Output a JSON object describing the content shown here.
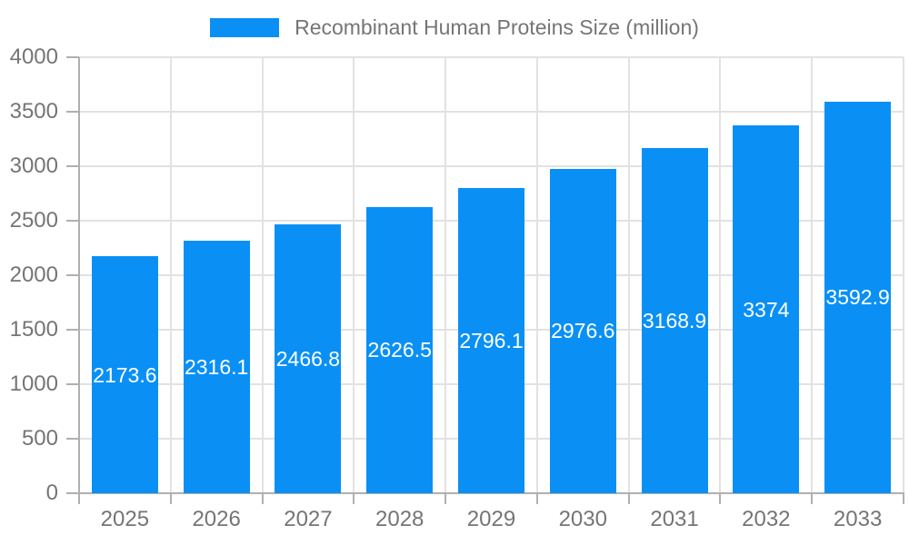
{
  "legend": {
    "items": [
      {
        "label": "Recombinant Human Proteins Size (million)"
      }
    ]
  },
  "chart_data": {
    "type": "bar",
    "title": "Recombinant Human Proteins Size (million)",
    "categories": [
      "2025",
      "2026",
      "2027",
      "2028",
      "2029",
      "2030",
      "2031",
      "2032",
      "2033"
    ],
    "series": [
      {
        "name": "Recombinant Human Proteins Size (million)",
        "values": [
          2173.6,
          2316.1,
          2466.8,
          2626.5,
          2796.1,
          2976.6,
          3168.9,
          3374,
          3592.9
        ]
      }
    ],
    "xlabel": "",
    "ylabel": "",
    "ylim": [
      0,
      4000
    ],
    "yticks": [
      0,
      500,
      1000,
      1500,
      2000,
      2500,
      3000,
      3500,
      4000
    ],
    "grid": true,
    "legend_position": "top",
    "value_labels": "inside-center",
    "colors": {
      "bar": "#0a90f5",
      "value_label": "#ffffff",
      "axis_text": "#757575",
      "axis_line": "#b0b0b0",
      "gridline": "#e2e2e2",
      "background": "#ffffff"
    }
  }
}
